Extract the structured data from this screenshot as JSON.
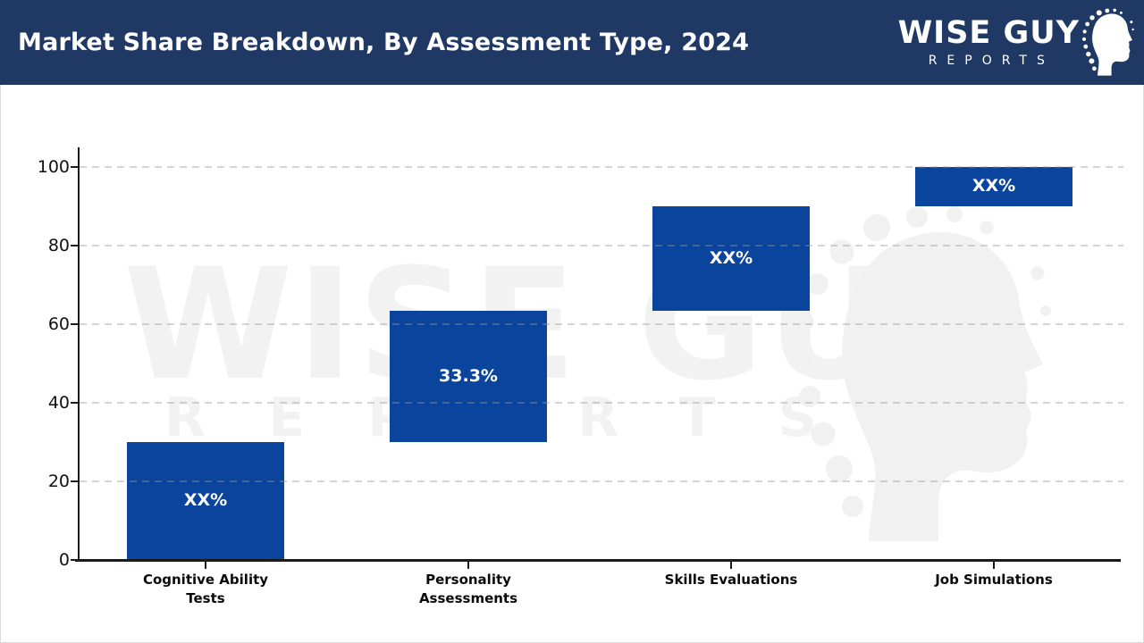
{
  "header": {
    "title": "Market Share Breakdown, By Assessment Type, 2024",
    "bg_color": "#1f3864",
    "logo": {
      "line1": "WISE GUY",
      "line2": "REPORTS"
    }
  },
  "watermark": {
    "line1": "WISE GUY",
    "line2": "REPORTS"
  },
  "chart_data": {
    "type": "bar",
    "subtype": "floating-breakdown (waterfall-style segments)",
    "title": "Market Share Breakdown, By Assessment Type, 2024",
    "categories": [
      "Cognitive Ability Tests",
      "Personality Assessments",
      "Skills Evaluations",
      "Job Simulations"
    ],
    "bars": [
      {
        "category": "Cognitive Ability Tests",
        "start": 0,
        "end": 30,
        "label": "XX%",
        "tick_lines": [
          "Cognitive Ability",
          "Tests"
        ]
      },
      {
        "category": "Personality Assessments",
        "start": 30,
        "end": 63.3,
        "label": "33.3%",
        "tick_lines": [
          "Personality",
          "Assessments"
        ]
      },
      {
        "category": "Skills Evaluations",
        "start": 63.3,
        "end": 90,
        "label": "XX%",
        "tick_lines": [
          "Skills Evaluations"
        ]
      },
      {
        "category": "Job Simulations",
        "start": 90,
        "end": 100,
        "label": "XX%",
        "tick_lines": [
          "Job Simulations"
        ]
      }
    ],
    "y_ticks": [
      0,
      20,
      40,
      60,
      80,
      100
    ],
    "ylim": [
      0,
      105
    ],
    "xlabel": "",
    "ylabel": "",
    "grid": "horizontal-dashed",
    "legend": "none",
    "bar_color": "#0a449c",
    "value_label_color": "#ffffff",
    "axis_color": "#1a1a1a",
    "gridline_color": "#d9d9d9"
  }
}
